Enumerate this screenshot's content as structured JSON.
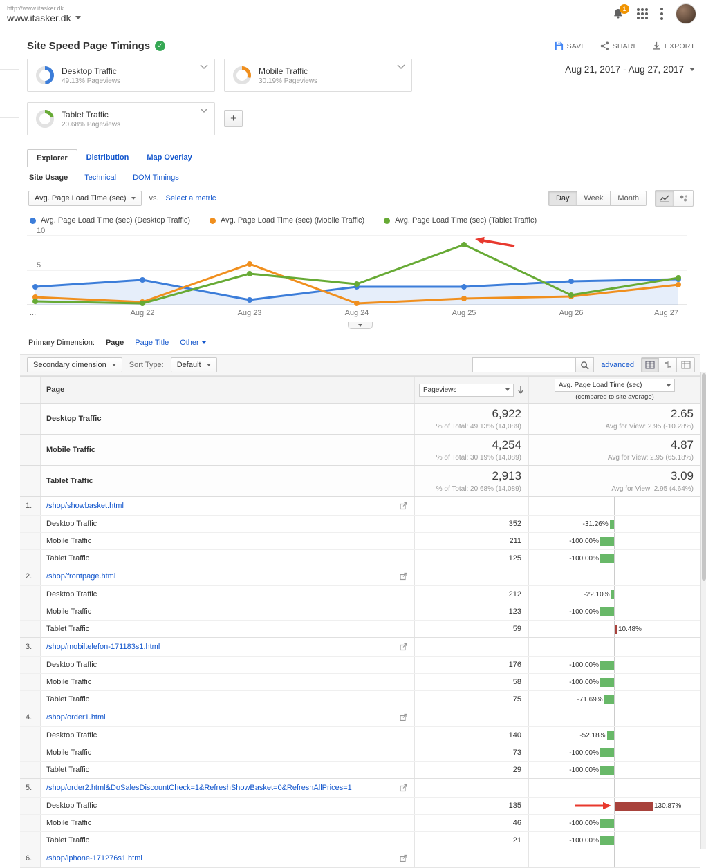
{
  "topbar": {
    "url": "http://www.itasker.dk",
    "account_name": "www.itasker.dk",
    "notification_count": "1"
  },
  "icons": {
    "check": "✓",
    "plus": "+"
  },
  "report_header": {
    "title": "Site Speed Page Timings",
    "save": "SAVE",
    "share": "SHARE",
    "export": "EXPORT",
    "date_range": "Aug 21, 2017 - Aug 27, 2017"
  },
  "segments": [
    {
      "name": "Desktop Traffic",
      "detail": "49.13% Pageviews",
      "percent": 49.13,
      "color": "#3c7dd9"
    },
    {
      "name": "Mobile Traffic",
      "detail": "30.19% Pageviews",
      "percent": 30.19,
      "color": "#f08f1e"
    },
    {
      "name": "Tablet Traffic",
      "detail": "20.68% Pageviews",
      "percent": 20.68,
      "color": "#67aa35"
    }
  ],
  "tabs": [
    {
      "label": "Explorer",
      "active": true
    },
    {
      "label": "Distribution",
      "active": false
    },
    {
      "label": "Map Overlay",
      "active": false
    }
  ],
  "subtabs": [
    {
      "label": "Site Usage",
      "active": true
    },
    {
      "label": "Technical",
      "active": false
    },
    {
      "label": "DOM Timings",
      "active": false
    }
  ],
  "metric_bar": {
    "metric_dropdown": "Avg. Page Load Time (sec)",
    "vs_label": "vs.",
    "select_metric": "Select a metric",
    "granularity": [
      {
        "label": "Day",
        "active": true
      },
      {
        "label": "Week",
        "active": false
      },
      {
        "label": "Month",
        "active": false
      }
    ]
  },
  "chart_data": {
    "type": "line",
    "x": [
      "...",
      "Aug 22",
      "Aug 23",
      "Aug 24",
      "Aug 25",
      "Aug 26",
      "Aug 27"
    ],
    "ylim": [
      0,
      10
    ],
    "yticks": [
      5,
      10
    ],
    "grid": true,
    "legend_position": "top",
    "series": [
      {
        "name": "Avg. Page Load Time (sec) (Desktop Traffic)",
        "color": "#3c7dd9",
        "area": true,
        "values": [
          2.6,
          3.6,
          0.7,
          2.6,
          2.6,
          3.4,
          3.7
        ]
      },
      {
        "name": "Avg. Page Load Time (sec) (Mobile Traffic)",
        "color": "#f08f1e",
        "area": false,
        "values": [
          1.1,
          0.4,
          5.9,
          0.2,
          0.9,
          1.2,
          2.9
        ]
      },
      {
        "name": "Avg. Page Load Time (sec) (Tablet Traffic)",
        "color": "#67aa35",
        "area": false,
        "values": [
          0.5,
          0.2,
          4.5,
          3.0,
          8.7,
          1.4,
          3.9
        ]
      }
    ]
  },
  "dimension_bar": {
    "label": "Primary Dimension:",
    "options": [
      {
        "label": "Page",
        "active": true,
        "caret": false
      },
      {
        "label": "Page Title",
        "active": false,
        "caret": false
      },
      {
        "label": "Other",
        "active": false,
        "caret": true
      }
    ]
  },
  "table_toolbar": {
    "secondary_dimension": "Secondary dimension",
    "sort_type_label": "Sort Type:",
    "sort_type_value": "Default",
    "advanced_link": "advanced"
  },
  "table": {
    "columns": {
      "page": "Page",
      "pageviews": "Pageviews",
      "metric": "Avg. Page Load Time (sec)",
      "metric_sub": "(compared to site average)"
    },
    "summary_rows": [
      {
        "label": "Desktop Traffic",
        "pageviews": "6,922",
        "pageviews_sub": "% of Total: 49.13% (14,089)",
        "metric": "2.65",
        "metric_sub": "Avg for View: 2.95 (-10.28%)"
      },
      {
        "label": "Mobile Traffic",
        "pageviews": "4,254",
        "pageviews_sub": "% of Total: 30.19% (14,089)",
        "metric": "4.87",
        "metric_sub": "Avg for View: 2.95 (65.18%)"
      },
      {
        "label": "Tablet Traffic",
        "pageviews": "2,913",
        "pageviews_sub": "% of Total: 20.68% (14,089)",
        "metric": "3.09",
        "metric_sub": "Avg for View: 2.95 (4.64%)"
      }
    ],
    "rows": [
      {
        "num": "1.",
        "page": "/shop/showbasket.html",
        "segments": [
          {
            "label": "Desktop Traffic",
            "pageviews": "352",
            "delta": "-31.26%",
            "arrow": false
          },
          {
            "label": "Mobile Traffic",
            "pageviews": "211",
            "delta": "-100.00%",
            "arrow": false
          },
          {
            "label": "Tablet Traffic",
            "pageviews": "125",
            "delta": "-100.00%",
            "arrow": false
          }
        ]
      },
      {
        "num": "2.",
        "page": "/shop/frontpage.html",
        "segments": [
          {
            "label": "Desktop Traffic",
            "pageviews": "212",
            "delta": "-22.10%",
            "arrow": false
          },
          {
            "label": "Mobile Traffic",
            "pageviews": "123",
            "delta": "-100.00%",
            "arrow": false
          },
          {
            "label": "Tablet Traffic",
            "pageviews": "59",
            "delta": "10.48%",
            "arrow": false
          }
        ]
      },
      {
        "num": "3.",
        "page": "/shop/mobiltelefon-171183s1.html",
        "segments": [
          {
            "label": "Desktop Traffic",
            "pageviews": "176",
            "delta": "-100.00%",
            "arrow": false
          },
          {
            "label": "Mobile Traffic",
            "pageviews": "58",
            "delta": "-100.00%",
            "arrow": false
          },
          {
            "label": "Tablet Traffic",
            "pageviews": "75",
            "delta": "-71.69%",
            "arrow": false
          }
        ]
      },
      {
        "num": "4.",
        "page": "/shop/order1.html",
        "segments": [
          {
            "label": "Desktop Traffic",
            "pageviews": "140",
            "delta": "-52.18%",
            "arrow": false
          },
          {
            "label": "Mobile Traffic",
            "pageviews": "73",
            "delta": "-100.00%",
            "arrow": false
          },
          {
            "label": "Tablet Traffic",
            "pageviews": "29",
            "delta": "-100.00%",
            "arrow": false
          }
        ]
      },
      {
        "num": "5.",
        "page": "/shop/order2.html&DoSalesDiscountCheck=1&RefreshShowBasket=0&RefreshAllPrices=1",
        "segments": [
          {
            "label": "Desktop Traffic",
            "pageviews": "135",
            "delta": "130.87%",
            "arrow": true
          },
          {
            "label": "Mobile Traffic",
            "pageviews": "46",
            "delta": "-100.00%",
            "arrow": false
          },
          {
            "label": "Tablet Traffic",
            "pageviews": "21",
            "delta": "-100.00%",
            "arrow": false
          }
        ]
      },
      {
        "num": "6.",
        "page": "/shop/iphone-171276s1.html",
        "segments": []
      }
    ]
  },
  "colors": {
    "positive_bar": "#a8423c",
    "negative_bar": "#68b868",
    "link": "#1155cc",
    "annotation": "#e8392e",
    "accent_orange": "#f09300"
  }
}
